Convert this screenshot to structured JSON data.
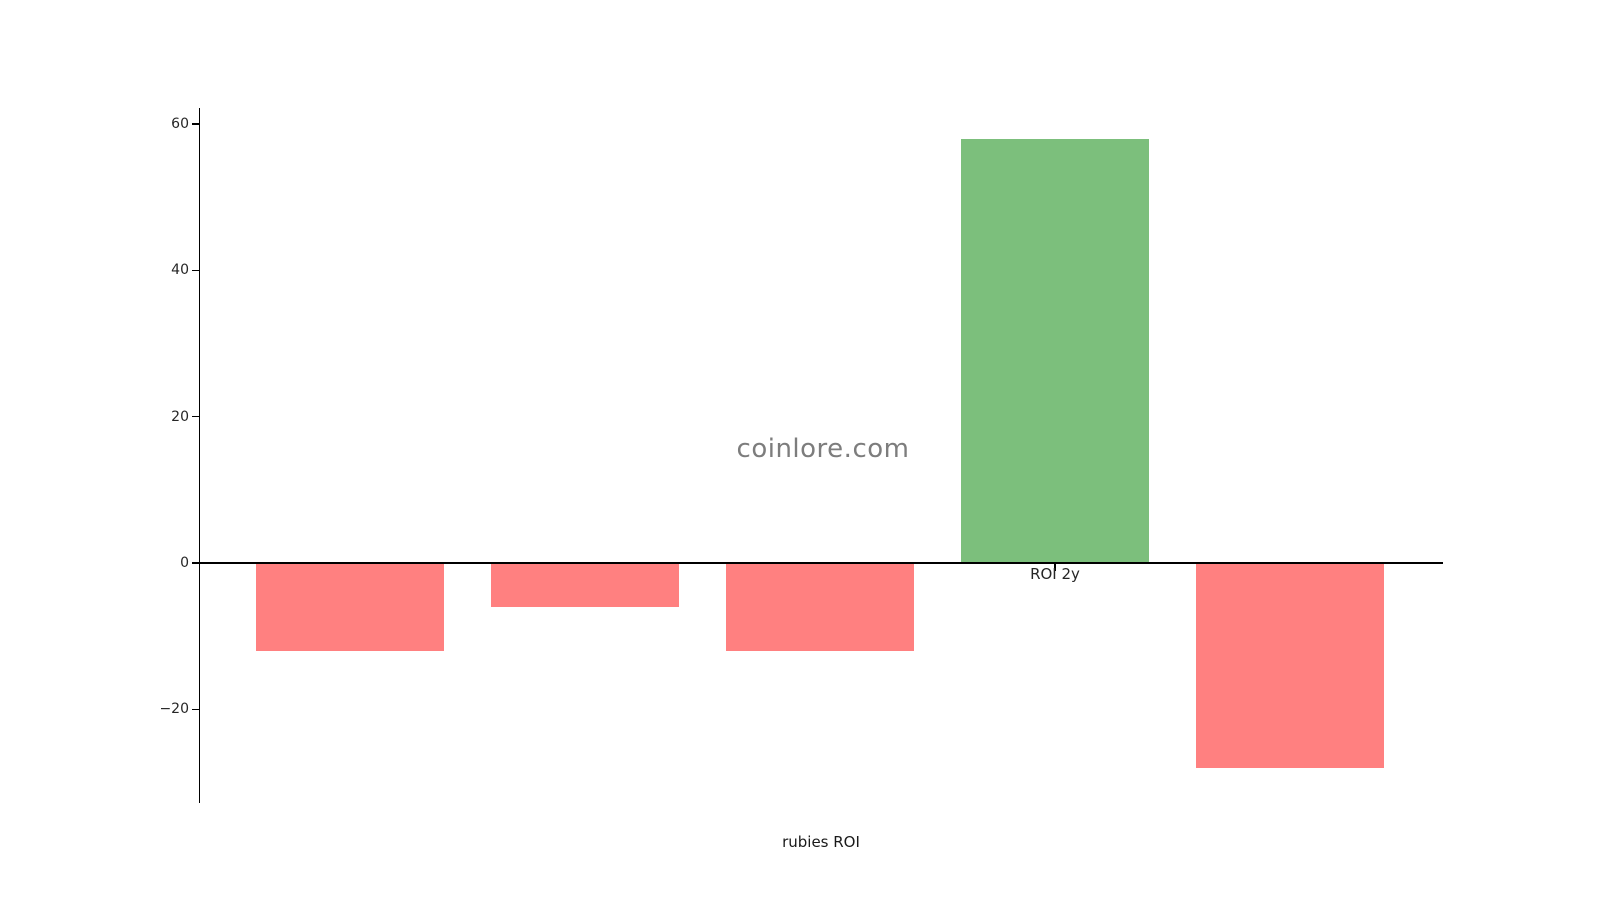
{
  "watermark": {
    "text": "coinlore.com",
    "color": "#7d7d7d"
  },
  "chart_data": {
    "type": "bar",
    "title": "rubies ROI",
    "xlabel": "rubies ROI",
    "ylabel": "",
    "categories": [
      null,
      null,
      null,
      "ROI 2y",
      null
    ],
    "values": [
      -12,
      -6,
      -12,
      58,
      -28
    ],
    "positive_color": "#7cbf7c",
    "negative_color": "#ff8080",
    "yticks": [
      60,
      40,
      20,
      0,
      -20
    ],
    "ytick_labels": [
      "60",
      "40",
      "20",
      "0",
      "−20"
    ],
    "ylim": [
      -33,
      62
    ],
    "grid": false,
    "legend": "none",
    "axis_color": "#000000",
    "tick_label_color": "#262626",
    "background_color": "#ffffff"
  }
}
